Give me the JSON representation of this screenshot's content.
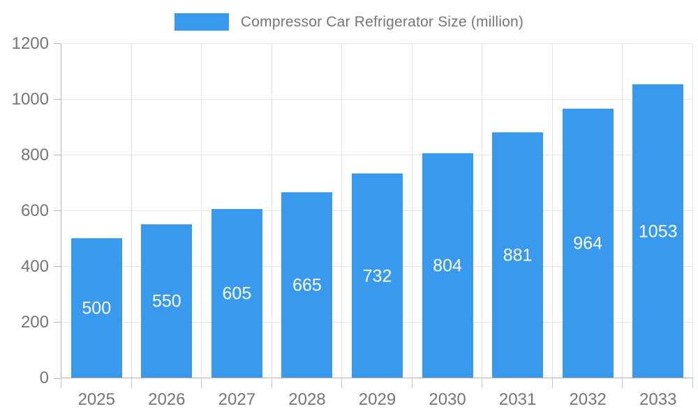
{
  "legend": {
    "label": "Compressor Car Refrigerator Size (million)"
  },
  "colors": {
    "bar": "#3999ec",
    "axis": "#b3b3b3",
    "grid": "#e3e3e3",
    "tick": "#c4c4c4",
    "text": "#757575",
    "bar_label": "#ffffff"
  },
  "chart_data": {
    "type": "bar",
    "title": "Compressor Car Refrigerator Size (million)",
    "categories": [
      "2025",
      "2026",
      "2027",
      "2028",
      "2029",
      "2030",
      "2031",
      "2032",
      "2033"
    ],
    "values": [
      500,
      550,
      605,
      665,
      732,
      804,
      881,
      964,
      1053
    ],
    "series": [
      {
        "name": "Compressor Car Refrigerator Size (million)",
        "values": [
          500,
          550,
          605,
          665,
          732,
          804,
          881,
          964,
          1053
        ]
      }
    ],
    "xlabel": "",
    "ylabel": "",
    "ylim": [
      0,
      1200
    ],
    "yticks": [
      0,
      200,
      400,
      600,
      800,
      1000,
      1200
    ],
    "grid": true,
    "legend_position": "top",
    "data_labels_position": "inside-center"
  }
}
